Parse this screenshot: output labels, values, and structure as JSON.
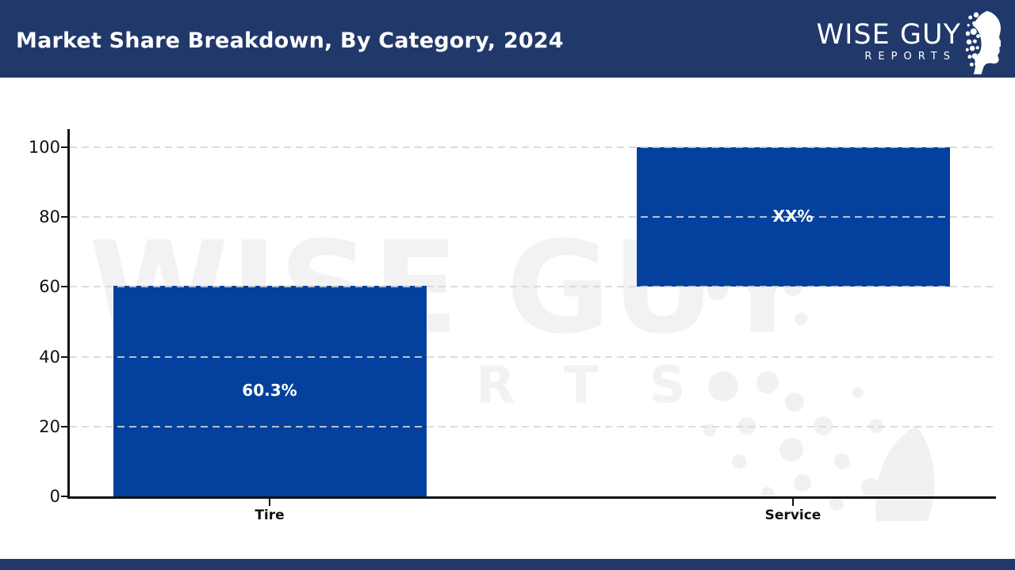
{
  "header": {
    "title": "Market Share Breakdown, By Category, 2024",
    "logo": {
      "wordmark": "WISE GUY",
      "sub": "REPORTS"
    }
  },
  "watermark": {
    "wordmark": "WISE GUY",
    "sub": "REPORTS"
  },
  "chart_data": {
    "type": "bar",
    "variant": "floating-range-bars (waterfall style)",
    "title": "Market Share Breakdown, By Category, 2024",
    "categories": [
      "Tire",
      "Service"
    ],
    "bars": [
      {
        "category": "Tire",
        "start": 0,
        "end": 60.3,
        "label": "60.3%"
      },
      {
        "category": "Service",
        "start": 60,
        "end": 100,
        "label": "XX%"
      }
    ],
    "yticks": [
      0,
      20,
      40,
      60,
      80,
      100
    ],
    "ylim": [
      0,
      105.2
    ],
    "xlabel": "",
    "ylabel": "",
    "grid": "horizontal dashed gridlines drawn above bars",
    "legend": "none",
    "bar_color": "#04419e",
    "bar_label_color": "#ffffff"
  },
  "colors": {
    "header_bg": "#21386a",
    "footer_bg": "#21386a",
    "bar": "#04419e",
    "grid": "#d6d6d6",
    "axis": "#111111",
    "watermark": "#f2f2f5",
    "title_text": "#ffffff"
  }
}
